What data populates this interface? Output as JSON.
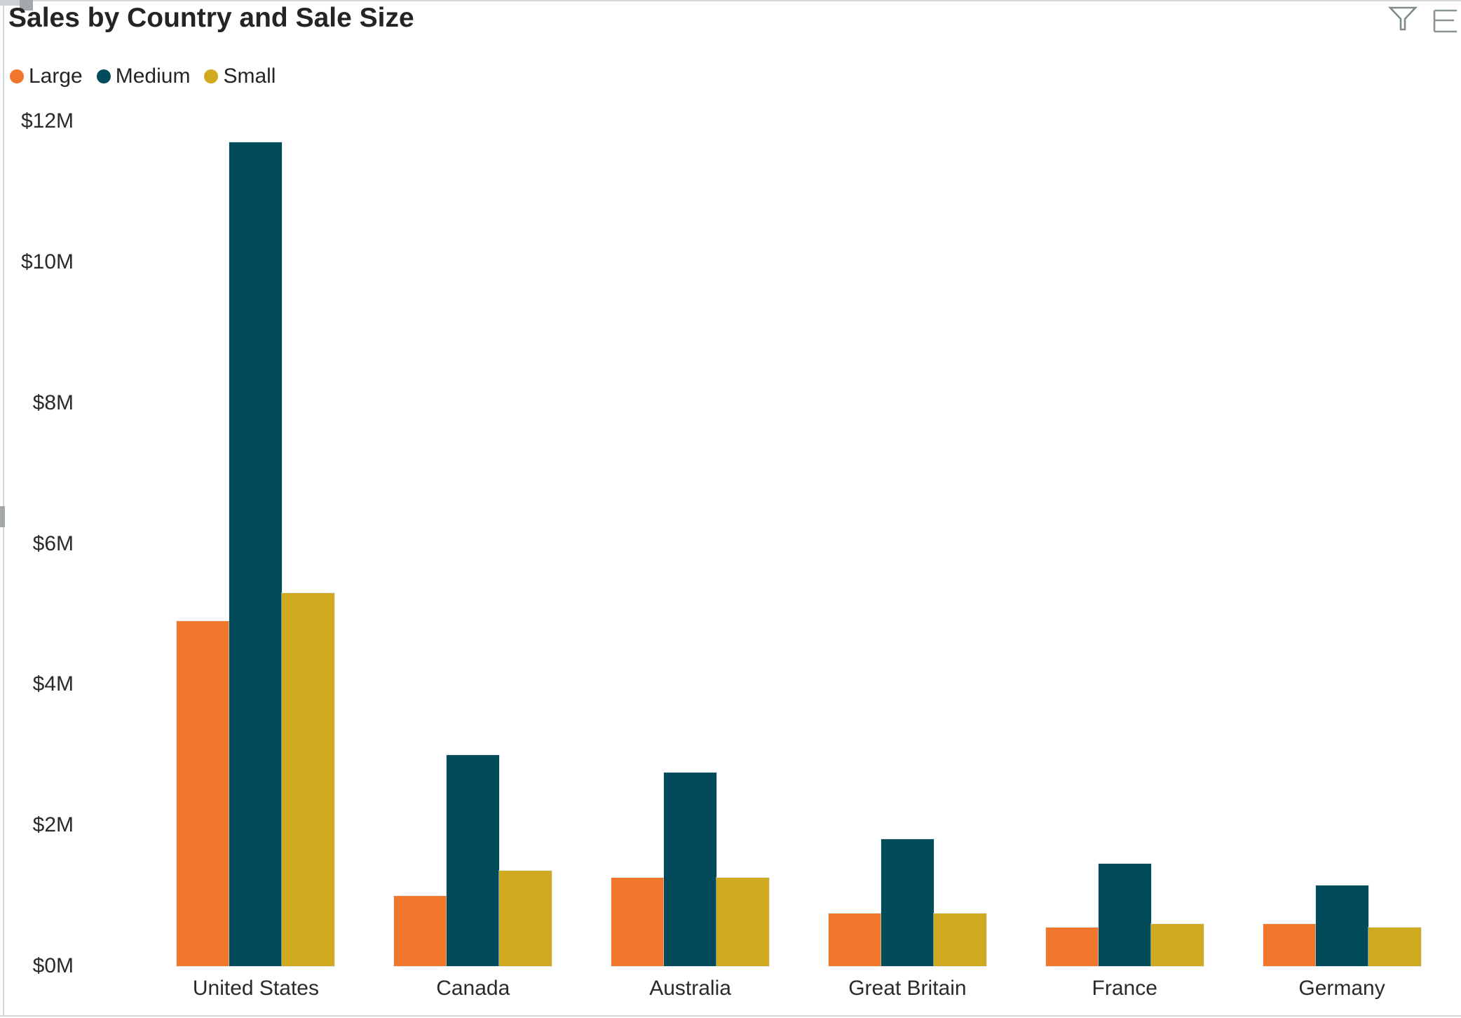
{
  "header": {
    "title": "Sales by Country and Sale Size",
    "icons": [
      {
        "name": "filter-icon"
      },
      {
        "name": "options-panel-icon"
      }
    ]
  },
  "legend": [
    {
      "label": "Large",
      "color": "#F0762B"
    },
    {
      "label": "Medium",
      "color": "#024B5A"
    },
    {
      "label": "Small",
      "color": "#CFAA1F"
    }
  ],
  "chart_data": {
    "type": "bar",
    "title": "Sales by Country and Sale Size",
    "categories": [
      "United States",
      "Canada",
      "Australia",
      "Great Britain",
      "France",
      "Germany"
    ],
    "series": [
      {
        "name": "Large",
        "color": "#F0762B",
        "values": [
          4.9,
          1.0,
          1.25,
          0.75,
          0.55,
          0.6
        ]
      },
      {
        "name": "Medium",
        "color": "#024B5A",
        "values": [
          11.7,
          3.0,
          2.75,
          1.8,
          1.45,
          1.15
        ]
      },
      {
        "name": "Small",
        "color": "#CFAA1F",
        "values": [
          5.3,
          1.35,
          1.25,
          0.75,
          0.6,
          0.55
        ]
      }
    ],
    "unit": "$M",
    "ylabel": "",
    "xlabel": "",
    "ylim": [
      0,
      12
    ],
    "y_ticks_top_to_bottom": [
      "$12M",
      "$10M",
      "$8M",
      "$6M",
      "$4M",
      "$2M",
      "$0M"
    ],
    "grid": false,
    "legend_position": "top-left"
  },
  "colors": {
    "accent_large": "#F0762B",
    "accent_medium": "#024B5A",
    "accent_small": "#CFAA1F",
    "text": "#252423",
    "chrome_gray": "#a3a8ab",
    "border_gray": "#d5d8da",
    "icon_gray": "#7d8b8a"
  }
}
